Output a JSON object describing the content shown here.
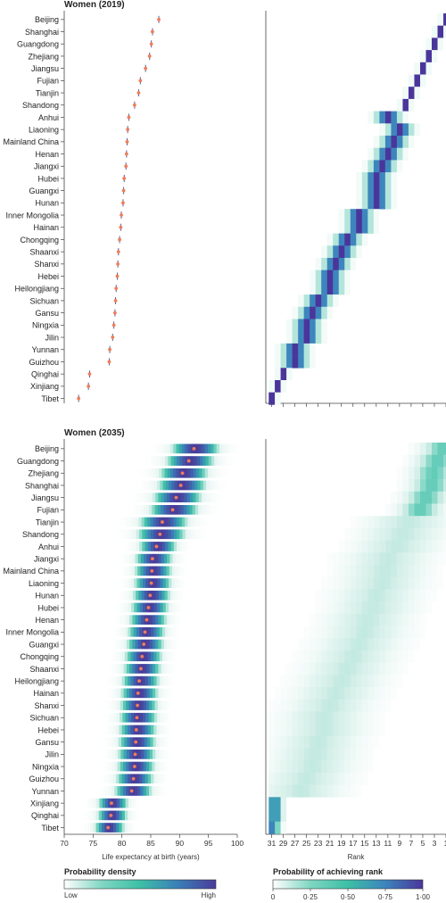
{
  "colors": {
    "density_stops": [
      "#ffffff",
      "#e6f5f1",
      "#3dbfa6",
      "#3a7fb8",
      "#4a3c9a"
    ],
    "rank_stops": [
      "#ffffff",
      "#d4efe8",
      "#45c3ac",
      "#3d84bd",
      "#4a359b"
    ],
    "point": "#f07c5b",
    "tick": "#5b5b8f"
  },
  "chart_data": [
    {
      "type": "scatter",
      "panel": "top-left",
      "title": "Women (2019)",
      "categories": [
        "Beijing",
        "Shanghai",
        "Guangdong",
        "Zhejiang",
        "Jiangsu",
        "Fujian",
        "Tianjin",
        "Shandong",
        "Anhui",
        "Liaoning",
        "Mainland China",
        "Henan",
        "Jiangxi",
        "Hubei",
        "Guangxi",
        "Hunan",
        "Inner Mongolia",
        "Hainan",
        "Chongqing",
        "Shaanxi",
        "Shanxi",
        "Hebei",
        "Heilongjiang",
        "Sichuan",
        "Gansu",
        "Ningxia",
        "Jilin",
        "Yunnan",
        "Guizhou",
        "Qinghai",
        "Xinjiang",
        "Tibet"
      ],
      "values": [
        86.4,
        85.3,
        85.1,
        84.8,
        84.1,
        83.2,
        82.9,
        82.2,
        81.2,
        81.0,
        80.9,
        80.8,
        80.7,
        80.4,
        80.3,
        80.2,
        79.9,
        79.8,
        79.6,
        79.4,
        79.3,
        79.2,
        79.0,
        78.9,
        78.8,
        78.6,
        78.4,
        77.9,
        77.8,
        74.4,
        74.2,
        72.5
      ],
      "xlim": [
        70,
        100
      ]
    },
    {
      "type": "heatmap",
      "panel": "top-right",
      "categories": [
        "Beijing",
        "Shanghai",
        "Guangdong",
        "Zhejiang",
        "Jiangsu",
        "Fujian",
        "Tianjin",
        "Shandong",
        "Anhui",
        "Liaoning",
        "Mainland China",
        "Henan",
        "Jiangxi",
        "Hubei",
        "Guangxi",
        "Hunan",
        "Inner Mongolia",
        "Hainan",
        "Chongqing",
        "Shaanxi",
        "Shanxi",
        "Hebei",
        "Heilongjiang",
        "Sichuan",
        "Gansu",
        "Ningxia",
        "Jilin",
        "Yunnan",
        "Guizhou",
        "Qinghai",
        "Xinjiang",
        "Tibet"
      ],
      "expected_rank": [
        1,
        2,
        3,
        4,
        5,
        6,
        7,
        8,
        11,
        9,
        10,
        11,
        12,
        13,
        13,
        13,
        16,
        16,
        18,
        19,
        20,
        21,
        21,
        23,
        24,
        25,
        25,
        27,
        27,
        29,
        30,
        31
      ],
      "rank_ticks": [
        "31",
        "29",
        "27",
        "25",
        "23",
        "21",
        "19",
        "17",
        "15",
        "13",
        "11",
        "9",
        "7",
        "5",
        "3",
        "1"
      ]
    },
    {
      "type": "scatter",
      "panel": "bottom-left",
      "title": "Women (2035)",
      "categories": [
        "Beijing",
        "Guangdong",
        "Zhejiang",
        "Shanghai",
        "Jiangsu",
        "Fujian",
        "Tianjin",
        "Shandong",
        "Anhui",
        "Jiangxi",
        "Mainland China",
        "Liaoning",
        "Hunan",
        "Hubei",
        "Henan",
        "Inner Mongolia",
        "Guangxi",
        "Chongqing",
        "Shaanxi",
        "Heilongjiang",
        "Hainan",
        "Shanxi",
        "Sichuan",
        "Hebei",
        "Gansu",
        "Jilin",
        "Ningxia",
        "Guizhou",
        "Yunnan",
        "Xinjiang",
        "Qinghai",
        "Tibet"
      ],
      "values": [
        92.5,
        91.6,
        90.5,
        90.2,
        89.4,
        88.8,
        87.0,
        86.6,
        86.0,
        85.3,
        85.2,
        85.1,
        84.9,
        84.6,
        84.3,
        84.0,
        83.8,
        83.5,
        83.3,
        83.0,
        82.8,
        82.7,
        82.6,
        82.5,
        82.4,
        82.3,
        82.2,
        82.0,
        81.7,
        78.2,
        78.1,
        77.6
      ],
      "xlim": [
        70,
        100
      ],
      "xticks": [
        "70",
        "75",
        "80",
        "85",
        "90",
        "95",
        "100"
      ],
      "xlabel": "Life expectancy at birth (years)"
    },
    {
      "type": "heatmap",
      "panel": "bottom-right",
      "categories": [
        "Beijing",
        "Guangdong",
        "Zhejiang",
        "Shanghai",
        "Jiangsu",
        "Fujian",
        "Tianjin",
        "Shandong",
        "Anhui",
        "Jiangxi",
        "Mainland China",
        "Liaoning",
        "Hunan",
        "Hubei",
        "Henan",
        "Inner Mongolia",
        "Guangxi",
        "Chongqing",
        "Shaanxi",
        "Heilongjiang",
        "Hainan",
        "Shanxi",
        "Sichuan",
        "Hebei",
        "Gansu",
        "Jilin",
        "Ningxia",
        "Guizhou",
        "Yunnan",
        "Xinjiang",
        "Qinghai",
        "Tibet"
      ],
      "expected_rank": [
        1.5,
        2.5,
        3.2,
        3.5,
        4.5,
        5.5,
        7.5,
        8.5,
        9.5,
        11,
        11.5,
        12,
        13,
        13.5,
        14.5,
        15,
        16,
        17,
        18,
        19,
        20,
        21,
        22,
        22,
        23,
        23.5,
        24,
        25,
        26,
        30.5,
        30.5,
        31
      ],
      "rank_ticks": [
        "31",
        "29",
        "27",
        "25",
        "23",
        "21",
        "19",
        "17",
        "15",
        "13",
        "11",
        "9",
        "7",
        "5",
        "3",
        "1"
      ],
      "xlabel": "Rank"
    }
  ],
  "legends": {
    "density": {
      "title": "Probability density",
      "low_label": "Low",
      "high_label": "High"
    },
    "rank": {
      "title": "Probability of achieving rank",
      "ticks": [
        "0",
        "0·25",
        "0·50",
        "0·75",
        "1·00"
      ]
    }
  }
}
